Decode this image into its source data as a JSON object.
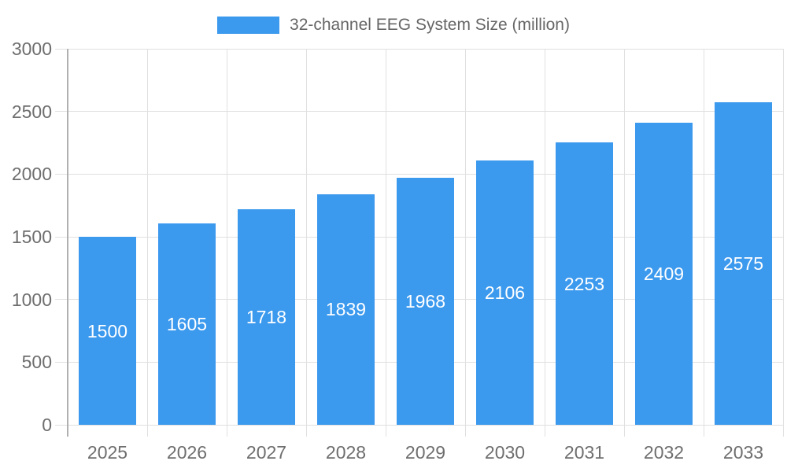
{
  "legend": {
    "label": "32-channel EEG System Size (million)"
  },
  "colors": {
    "bar": "#3B99EE",
    "bar_label": "#FFFFFF",
    "grid_line": "#E0E0E0",
    "axis_line": "#B0B0B0",
    "tick_label": "#6E6E6E",
    "legend_label": "#666666",
    "background": "#FFFFFF"
  },
  "chart_data": {
    "type": "bar",
    "title": "32-channel EEG System Size (million)",
    "series_name": "32-channel EEG System Size (million)",
    "categories": [
      "2025",
      "2026",
      "2027",
      "2028",
      "2029",
      "2030",
      "2031",
      "2032",
      "2033"
    ],
    "values": [
      1500,
      1605,
      1718,
      1839,
      1968,
      2106,
      2253,
      2409,
      2575
    ],
    "xlabel": "",
    "ylabel": "",
    "ylim": [
      0,
      3000
    ],
    "yticks": [
      0,
      500,
      1000,
      1500,
      2000,
      2500,
      3000
    ],
    "grid": true,
    "legend_position": "top-center",
    "value_labels": "inside-center-white"
  }
}
